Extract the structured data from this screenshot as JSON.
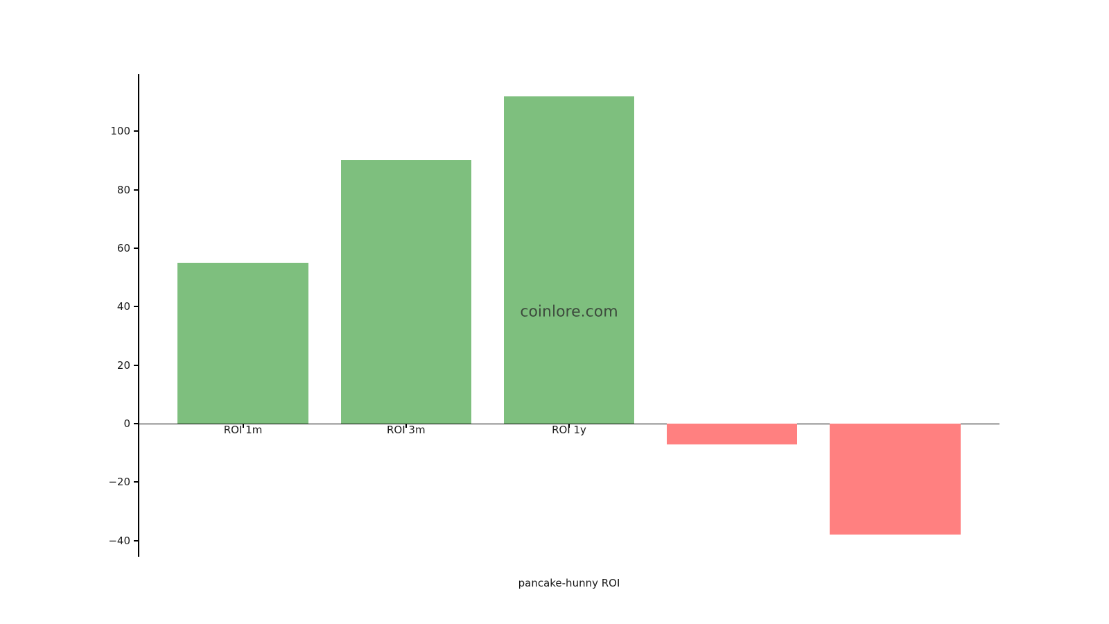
{
  "chart_data": {
    "type": "bar",
    "title": "pancake-hunny ROI",
    "watermark": "coinlore.com",
    "categories": [
      "ROI 1m",
      "ROI 3m",
      "ROI 1y",
      "",
      ""
    ],
    "values": [
      55,
      90,
      112,
      -7,
      -38
    ],
    "series": [
      {
        "name": "ROI",
        "values": [
          55,
          90,
          112,
          -7,
          -38
        ]
      }
    ],
    "bar_colors": [
      "#7EBF7E",
      "#7EBF7E",
      "#7EBF7E",
      "#FF8080",
      "#FF8080"
    ],
    "positive_color": "#7EBF7E",
    "negative_color": "#FF8080",
    "yticks": [
      100,
      80,
      60,
      40,
      20,
      0,
      -20,
      -40
    ],
    "ytick_labels": [
      "100",
      "80",
      "60",
      "40",
      "20",
      "0",
      "−20",
      "−40"
    ],
    "ylim": [
      -45.5,
      119.5
    ],
    "xlim": [
      -0.64,
      4.64
    ],
    "bar_width": 0.8,
    "grid": false,
    "legend": null,
    "axis_color": "#000000",
    "text_color": "#1a1a1a"
  }
}
